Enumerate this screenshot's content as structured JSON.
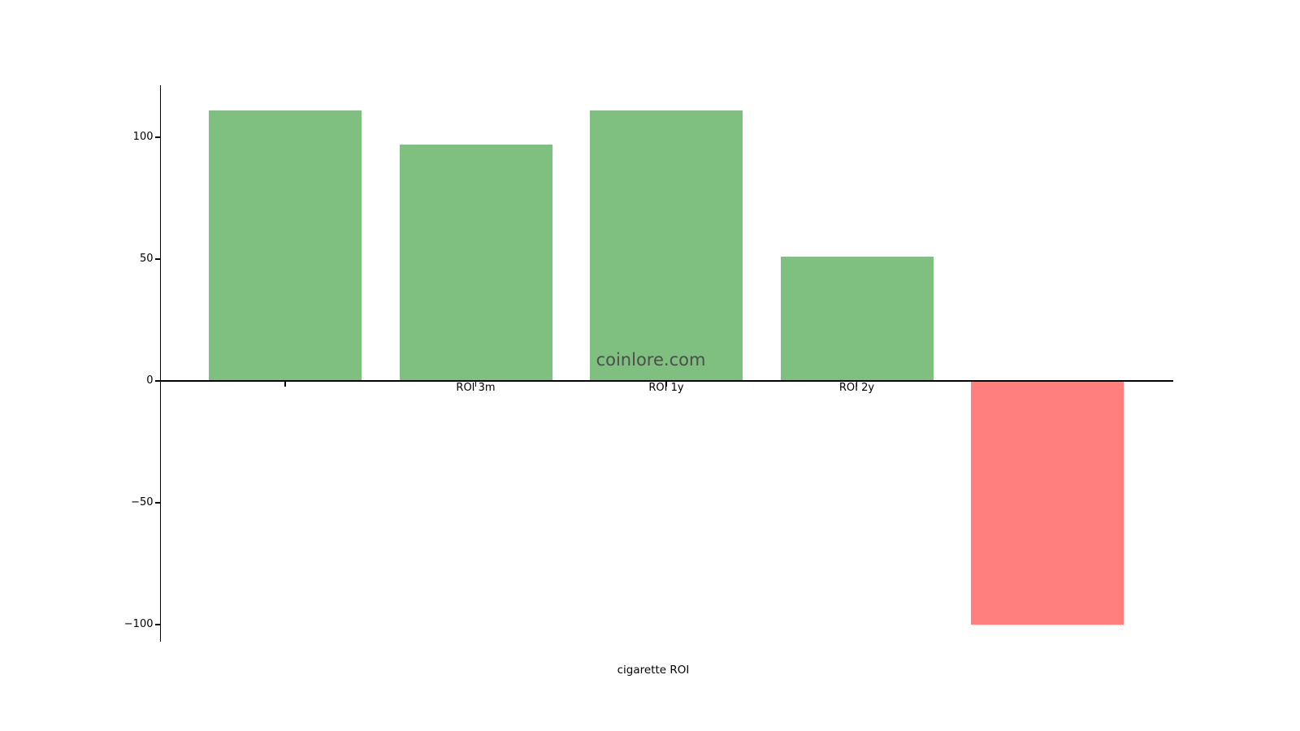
{
  "chart_data": {
    "type": "bar",
    "categories": [
      "",
      "ROI 3m",
      "ROI 1y",
      "ROI 2y",
      ""
    ],
    "values": [
      111,
      97,
      111,
      51,
      -100
    ],
    "positive_color": "#7fbf7f",
    "negative_color": "#ff7f7f",
    "axis_color": "#000000",
    "yticks": [
      100,
      50,
      0,
      -50,
      -100
    ],
    "ytick_labels": [
      "100",
      "50",
      "0",
      "−50",
      "−100"
    ],
    "ylim": [
      -107,
      121
    ],
    "grid": false,
    "legend": "none",
    "xlabel": "cigarette ROI",
    "ylabel": "",
    "watermark": "coinlore.com",
    "watermark_color": "#4d4d4d"
  }
}
